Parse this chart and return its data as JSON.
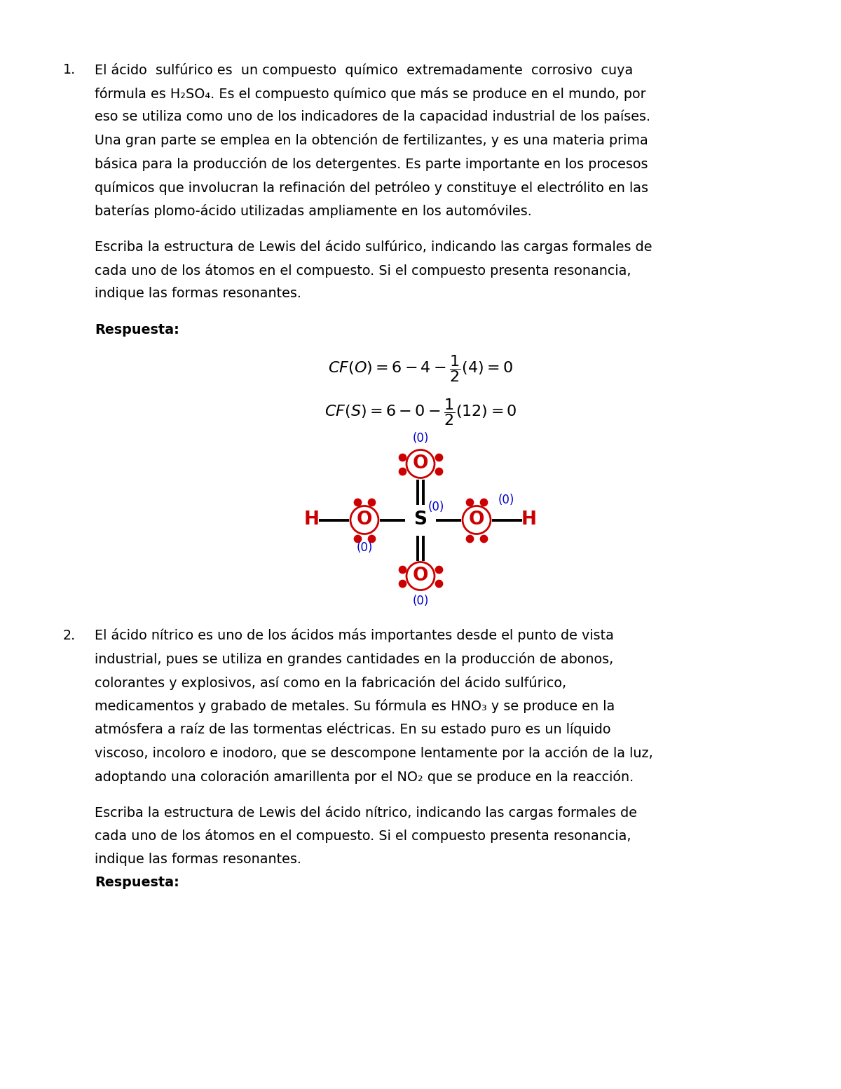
{
  "bg_color": "#ffffff",
  "text_color": "#000000",
  "atom_color": "#cc0000",
  "charge_color": "#0000cc",
  "bond_color": "#000000",
  "H_color": "#cc0000",
  "para1_lines": [
    "El ácido  sulfúrico es  un compuesto  químico  extremadamente  corrosivo  cuya",
    "fórmula es H₂SO₄. Es el compuesto químico que más se produce en el mundo, por",
    "eso se utiliza como uno de los indicadores de la capacidad industrial de los países.",
    "Una gran parte se emplea en la obtención de fertilizantes, y es una materia prima",
    "básica para la producción de los detergentes. Es parte importante en los procesos",
    "químicos que involucran la refinación del petróleo y constituye el electrólito en las",
    "baterías plomo-ácido utilizadas ampliamente en los automóviles."
  ],
  "q1_lines": [
    "Escriba la estructura de Lewis del ácido sulfúrico, indicando las cargas formales de",
    "cada uno de los átomos en el compuesto. Si el compuesto presenta resonancia,",
    "indique las formas resonantes."
  ],
  "para2_lines": [
    "El ácido nítrico es uno de los ácidos más importantes desde el punto de vista",
    "industrial, pues se utiliza en grandes cantidades en la producción de abonos,",
    "colorantes y explosivos, así como en la fabricación del ácido sulfúrico,",
    "medicamentos y grabado de metales. Su fórmula es HNO₃ y se produce en la",
    "atmósfera a raíz de las tormentas eléctricas. En su estado puro es un líquido",
    "viscoso, incoloro e inodoro, que se descompone lentamente por la acción de la luz,",
    "adoptando una coloración amarillenta por el NO₂ que se produce en la reacción."
  ],
  "q2_lines": [
    "Escriba la estructura de Lewis del ácido nítrico, indicando las cargas formales de",
    "cada uno de los átomos en el compuesto. Si el compuesto presenta resonancia,",
    "indique las formas resonantes."
  ]
}
